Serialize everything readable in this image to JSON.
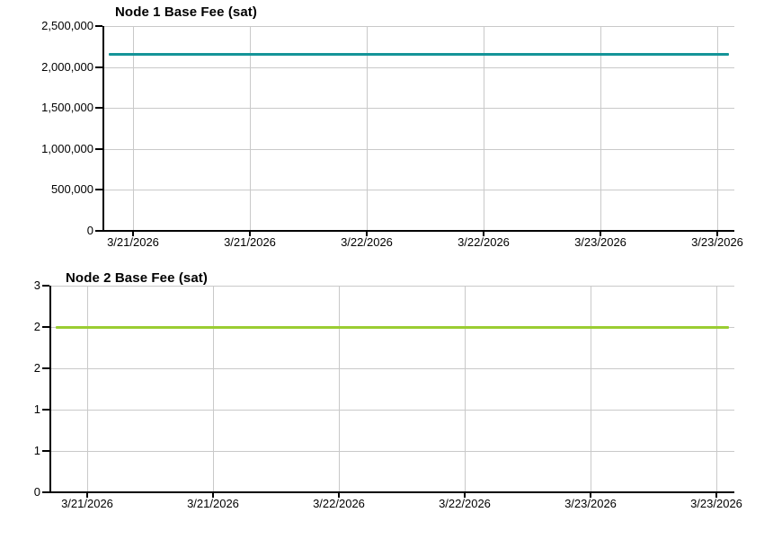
{
  "page": {
    "background": "#ffffff"
  },
  "colors": {
    "axis": "#000000",
    "gridline": "#c9c9c9",
    "tick_text": "#000000",
    "title_text": "#000000",
    "node1_line": "#149498",
    "node2_line": "#9acd32"
  },
  "chart_data": [
    {
      "type": "line",
      "title": "Node 1 Base Fee (sat)",
      "xlabel": "",
      "ylabel": "",
      "legend": "none",
      "grid": true,
      "ylim": [
        0,
        2500000
      ],
      "y_tick_labels": [
        "2,500,000",
        "2,000,000",
        "1,500,000",
        "1,000,000",
        "500,000",
        "0"
      ],
      "y_tick_values": [
        2500000,
        2000000,
        1500000,
        1000000,
        500000,
        0
      ],
      "x_tick_labels": [
        "3/21/2026",
        "3/21/2026",
        "3/22/2026",
        "3/22/2026",
        "3/23/2026",
        "3/23/2026"
      ],
      "series": [
        {
          "name": "Node 1 Base Fee",
          "color": "#149498",
          "shape": "constant-horizontal-line",
          "value": 2150000
        }
      ]
    },
    {
      "type": "line",
      "title": "Node 2 Base Fee (sat)",
      "xlabel": "",
      "ylabel": "",
      "legend": "none",
      "grid": true,
      "ylim": [
        0,
        2.5
      ],
      "y_tick_labels": [
        "3",
        "2",
        "2",
        "1",
        "1",
        "0"
      ],
      "y_tick_values": [
        2.5,
        2.0,
        1.5,
        1.0,
        0.5,
        0
      ],
      "x_tick_labels": [
        "3/21/2026",
        "3/21/2026",
        "3/22/2026",
        "3/22/2026",
        "3/23/2026",
        "3/23/2026"
      ],
      "series": [
        {
          "name": "Node 2 Base Fee",
          "color": "#9acd32",
          "shape": "constant-horizontal-line",
          "value": 2
        }
      ]
    }
  ]
}
